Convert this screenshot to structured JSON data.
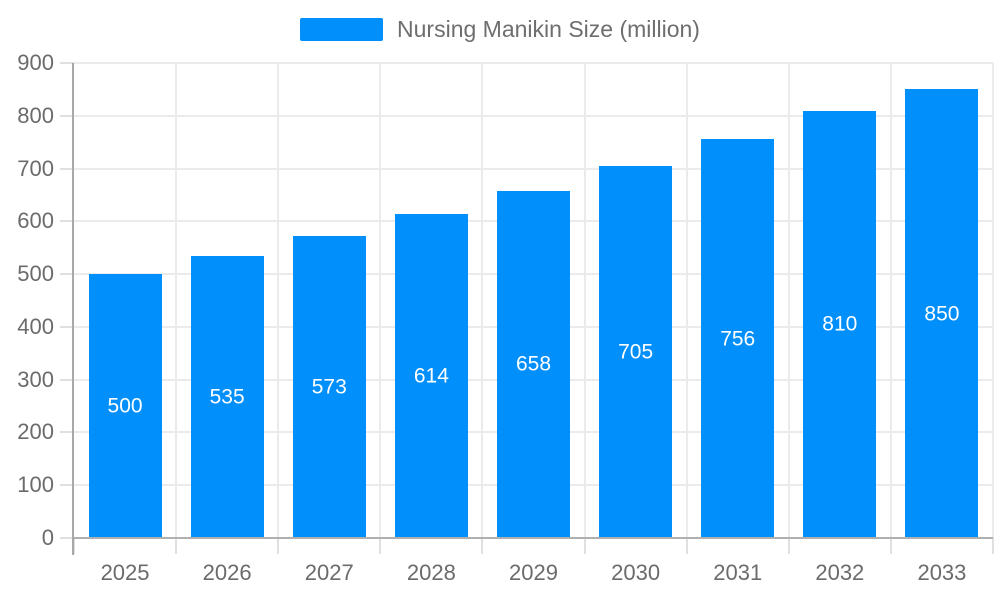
{
  "chart_data": {
    "type": "bar",
    "title": "Nursing Manikin Size (million)",
    "categories": [
      "2025",
      "2026",
      "2027",
      "2028",
      "2029",
      "2030",
      "2031",
      "2032",
      "2033"
    ],
    "series": [
      {
        "name": "Nursing Manikin Size (million)",
        "values": [
          500,
          535,
          573,
          614,
          658,
          705,
          756,
          810,
          850
        ],
        "color": "#008FFB"
      }
    ],
    "xlabel": "",
    "ylabel": "",
    "ylim": [
      0,
      900
    ],
    "ytick_interval": 100,
    "ytick_labels": [
      "0",
      "100",
      "200",
      "300",
      "400",
      "500",
      "600",
      "700",
      "800",
      "900"
    ],
    "grid": "horizontal lines every 100 plus vertical lines at category boundaries",
    "legend_position": "top-center",
    "value_labels_position": "inside-center",
    "value_label_color": "#ffffff",
    "axis_text_color": "#6b6b6b",
    "gridline_color": "#ebebeb",
    "axis_line_color": "#a8a8a8",
    "background_color": "#ffffff"
  }
}
